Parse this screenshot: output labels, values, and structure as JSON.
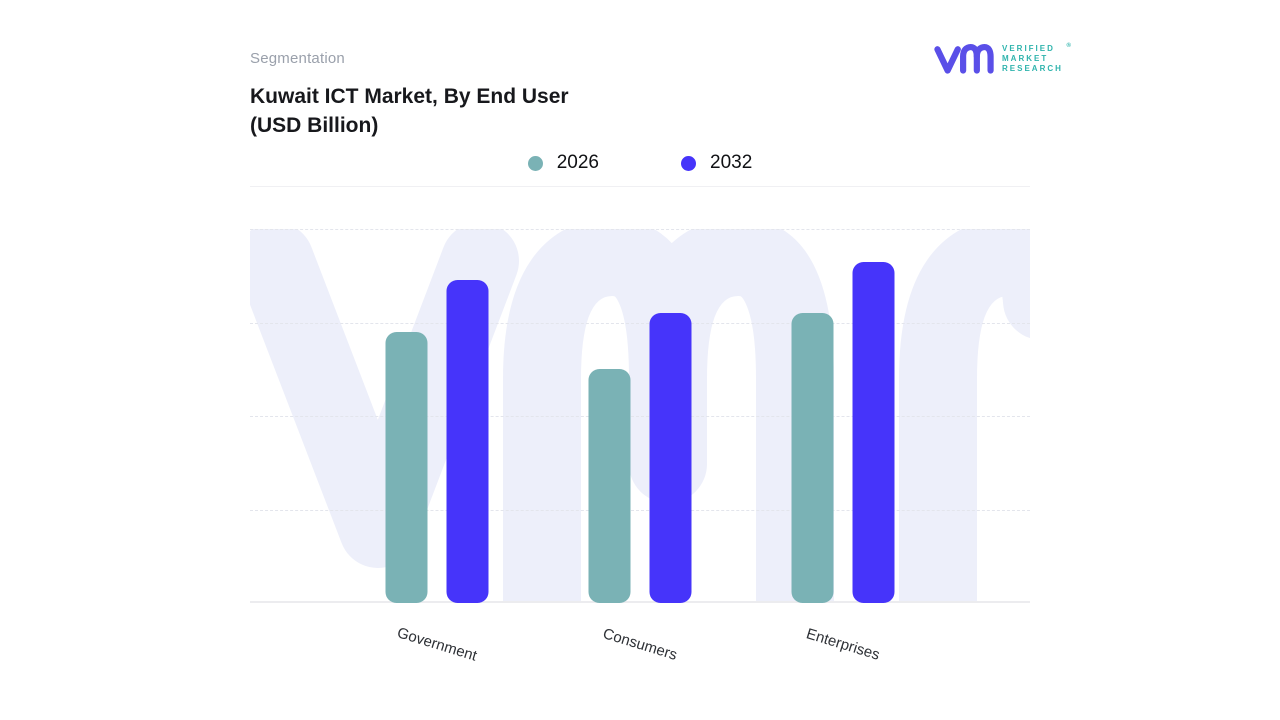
{
  "header": {
    "eyebrow": "Segmentation",
    "title_line1": "Kuwait ICT Market, By End User",
    "title_line2": "(USD Billion)"
  },
  "logo": {
    "brand_lines": [
      "VERIFIED",
      "MARKET",
      "RESEARCH"
    ],
    "registered_mark": "®",
    "glyph_color": "#5a4fe8",
    "text_color": "#2fb4ad"
  },
  "chart_data": {
    "type": "bar",
    "title": "Kuwait ICT Market, By End User (USD Billion)",
    "categories": [
      "Government",
      "Consumers",
      "Enterprises"
    ],
    "series": [
      {
        "name": "2026",
        "color": "#7ab2b5",
        "values": [
          2.9,
          2.5,
          3.1
        ]
      },
      {
        "name": "2032",
        "color": "#4634fa",
        "values": [
          3.45,
          3.1,
          3.65
        ]
      }
    ],
    "xlabel": "",
    "ylabel": "",
    "ylim": [
      0,
      4
    ],
    "y_tick_labels_visible": false,
    "gridlines": "dashed horizontal, solid baseline",
    "legend_position": "top-center",
    "category_label_rotation_deg": 17
  },
  "watermark": {
    "name": "vmr-logo-watermark",
    "color": "#edeffa"
  },
  "colors": {
    "background": "#ffffff",
    "title_text": "#17181c",
    "eyebrow_text": "#9aa0ab",
    "gridline": "#e3e5ec",
    "baseline": "#ececef"
  }
}
